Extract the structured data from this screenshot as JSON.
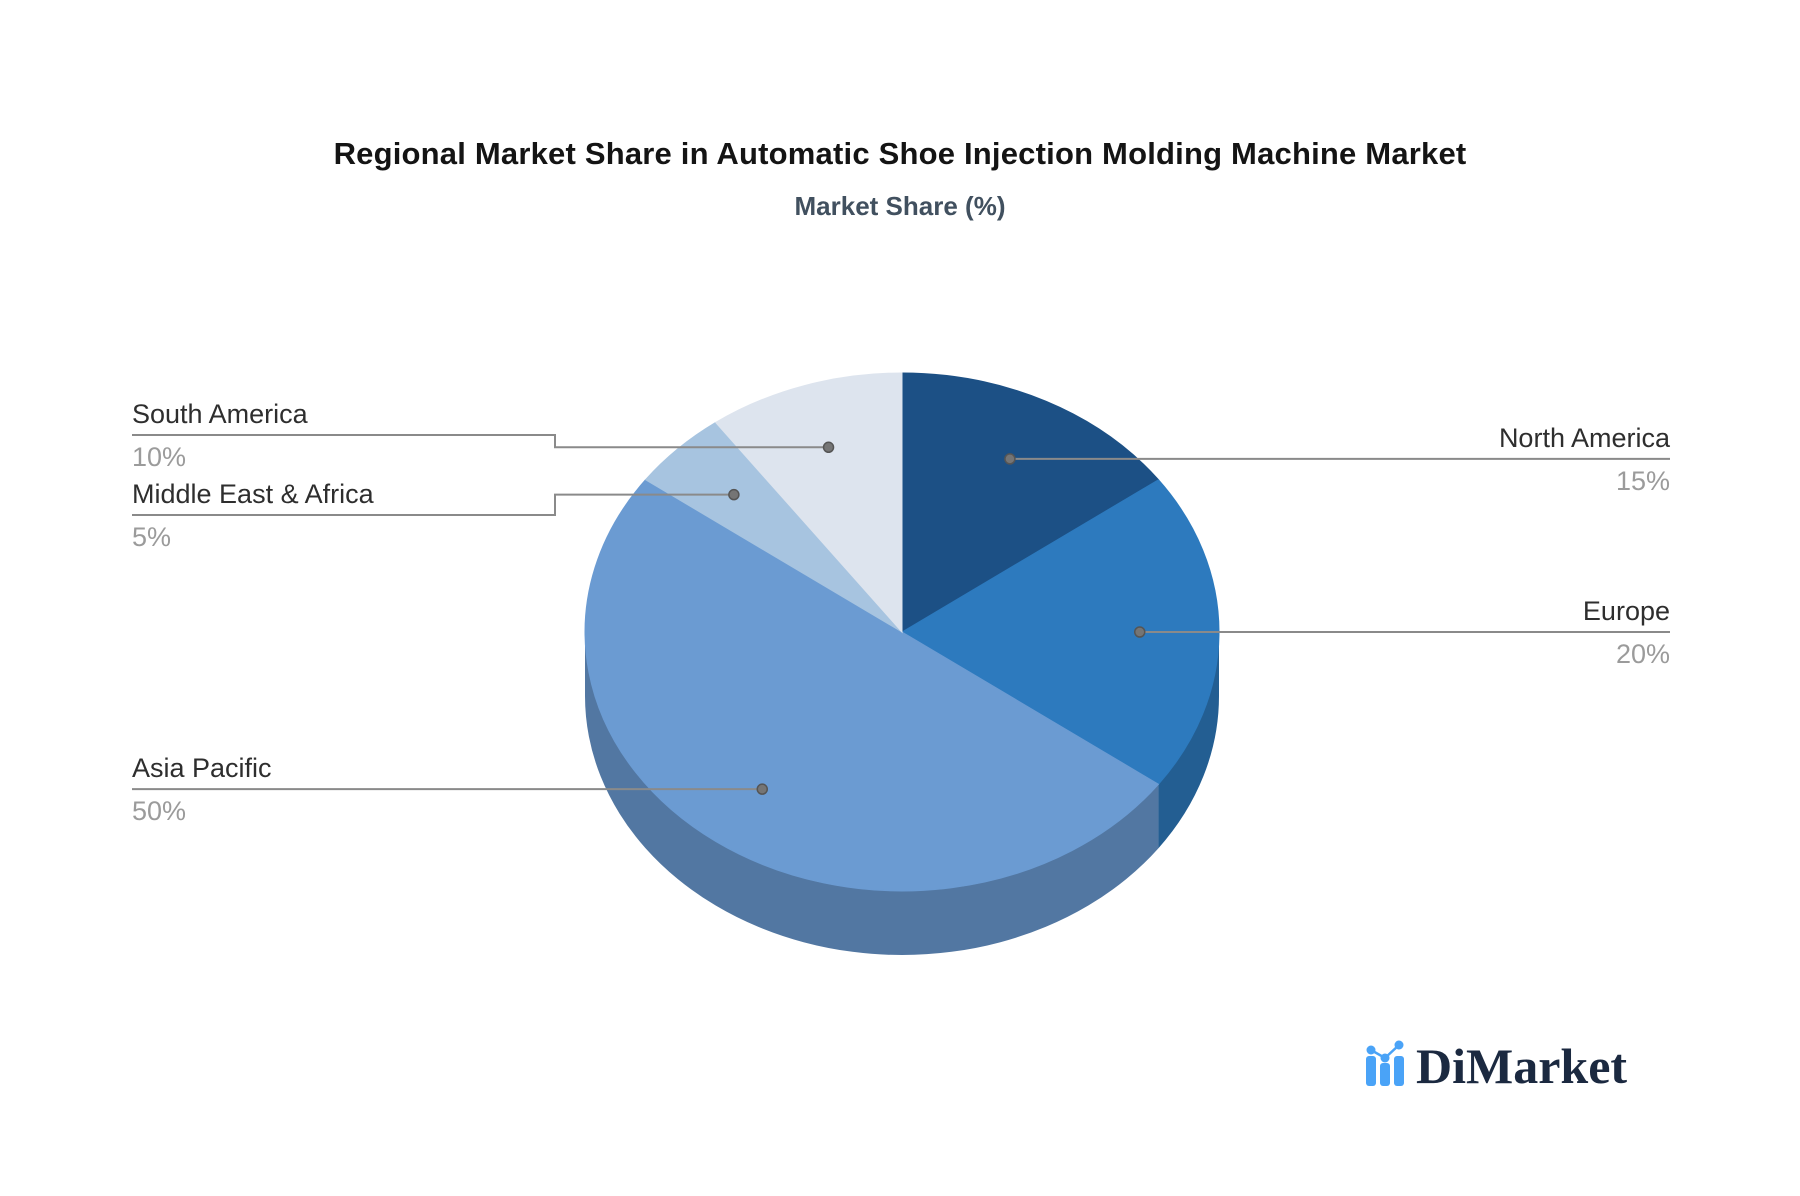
{
  "title": "Regional Market Share in Automatic Shoe Injection Molding Machine Market",
  "subtitle": "Market Share (%)",
  "chart_data": {
    "type": "pie",
    "title": "Regional Market Share in Automatic Shoe Injection Molding Machine Market",
    "subtitle": "Market Share (%)",
    "unit": "%",
    "style": "3d-pie",
    "rotation": "clockwise-from-12-oclock",
    "legend_position": "callout-labels",
    "slices": [
      {
        "label": "North America",
        "value": 15,
        "value_label": "15%",
        "color": "#1c5085"
      },
      {
        "label": "Europe",
        "value": 20,
        "value_label": "20%",
        "color": "#2d7abe"
      },
      {
        "label": "Asia Pacific",
        "value": 50,
        "value_label": "50%",
        "color": "#6b9bd2"
      },
      {
        "label": "Middle East & Africa",
        "value": 5,
        "value_label": "5%",
        "color": "#a7c4e0"
      },
      {
        "label": "South America",
        "value": 10,
        "value_label": "10%",
        "color": "#dde4ee"
      }
    ]
  },
  "colors": {
    "background": "#ffffff",
    "title_text": "#141414",
    "subtitle_text": "#41505f",
    "label_text": "#2e2e2e",
    "value_text": "#9b9b9b",
    "leader_line": "#8a8a8a",
    "leader_dot_fill": "#757575",
    "leader_dot_stroke": "#555555",
    "logo_text": "#1b2940",
    "logo_icon": "#4aa3f7"
  },
  "branding": {
    "logo_text": "DiMarket",
    "logo_icon": "bar-chart-with-trend-dots-icon"
  }
}
